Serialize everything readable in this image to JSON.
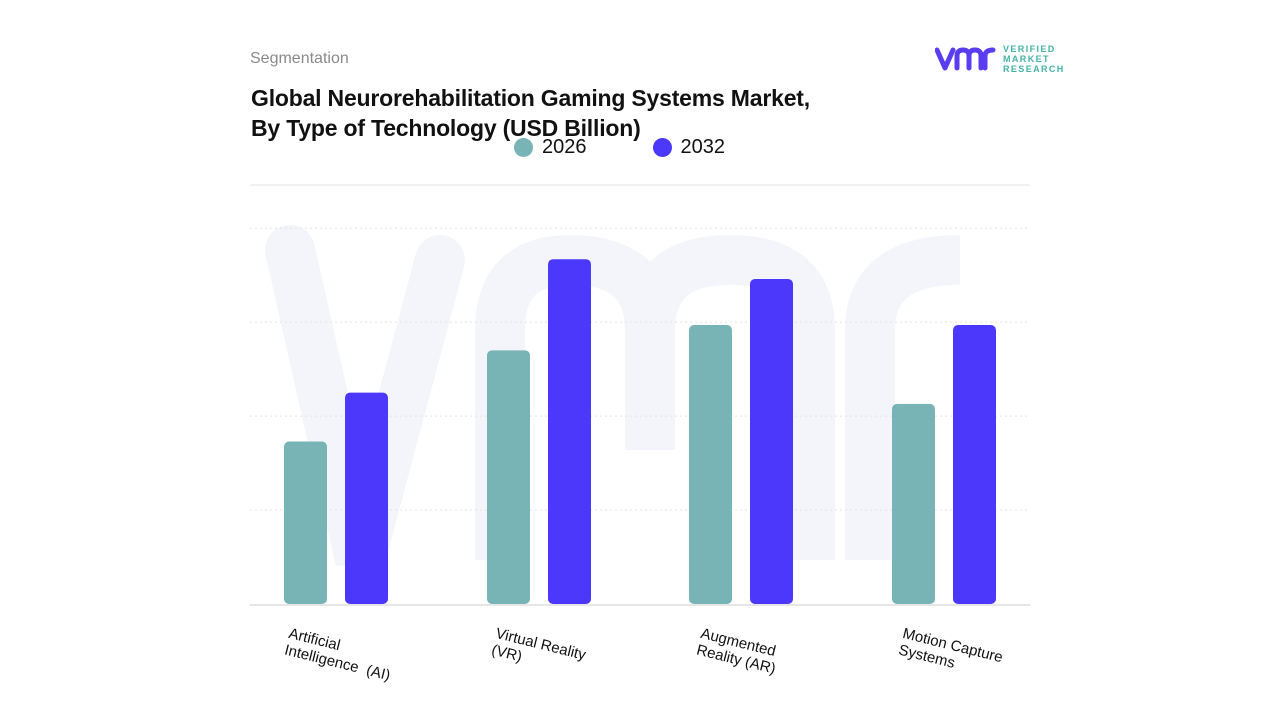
{
  "header": {
    "section": "Segmentation",
    "title_line1": "Global Neurorehabilitation Gaming Systems Market,",
    "title_line2": "By Type of Technology (USD Billion)"
  },
  "logo": {
    "mark": "vmr",
    "line1": "VERIFIED",
    "line2": "MARKET",
    "line3": "RESEARCH"
  },
  "chart_data": {
    "type": "bar",
    "title": "Global Neurorehabilitation Gaming Systems Market, By Type of Technology (USD Billion)",
    "categories": [
      "Artificial\nIntelligence  (AI)",
      "Virtual Reality\n(VR)",
      "Augmented\nReality (AR)",
      "Motion Capture\nSystems"
    ],
    "series": [
      {
        "name": "2026",
        "color": "#78b4b6",
        "values": [
          1.73,
          2.7,
          2.97,
          2.13
        ]
      },
      {
        "name": "2032",
        "color": "#4b38fb",
        "values": [
          2.25,
          3.67,
          3.46,
          2.97
        ]
      }
    ],
    "ylim": [
      0,
      4.46
    ],
    "grid": true,
    "legend": "top-center",
    "xlabel": "",
    "ylabel": ""
  }
}
